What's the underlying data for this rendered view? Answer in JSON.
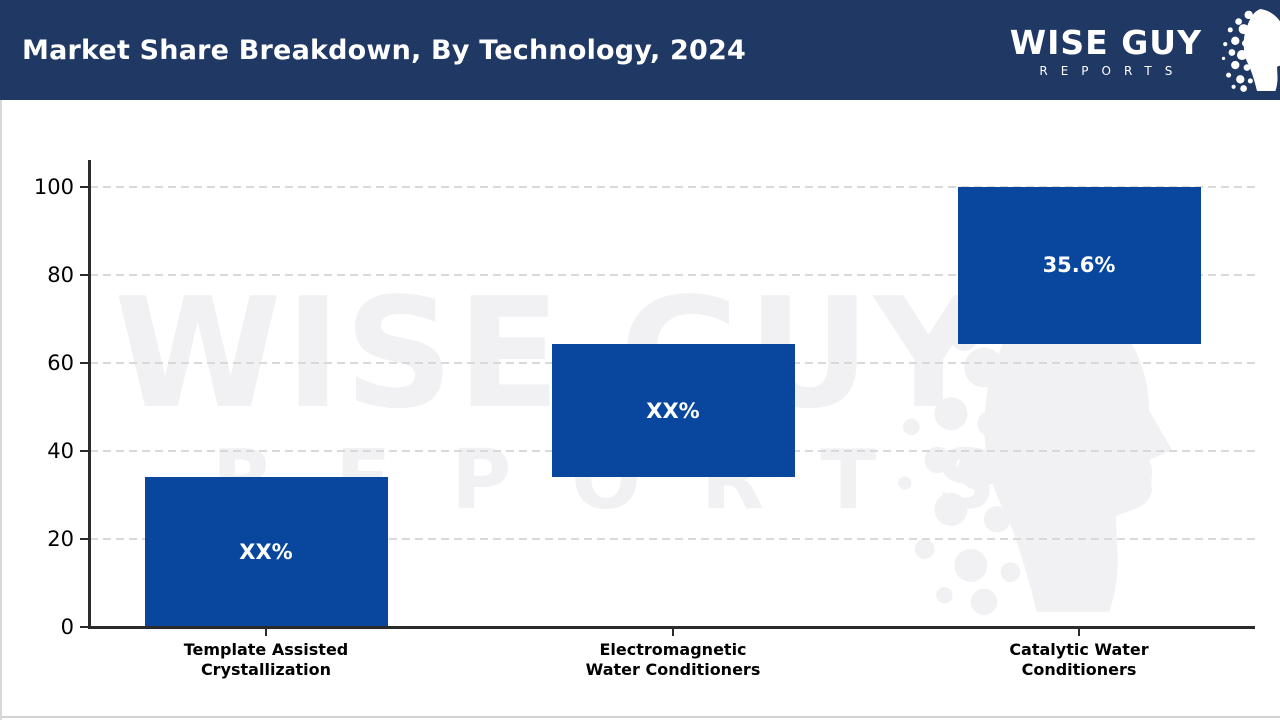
{
  "header": {
    "title": "Market Share Breakdown, By Technology, 2024",
    "logo": {
      "line1": "WISE GUY",
      "line2": "REPORTS"
    }
  },
  "watermark": {
    "line1": "WISE GUY",
    "line2": "REPORTS"
  },
  "colors": {
    "header_bg": "#1f3864",
    "bar": "#08479d",
    "bar_label": "#ffffff",
    "grid": "#d9d9d9",
    "axis": "#2b2b2b",
    "watermark": "#f1f1f4",
    "bottom_rule": "#d2d2d2"
  },
  "chart_data": {
    "type": "bar",
    "subtype": "waterfall",
    "title": "Market Share Breakdown, By Technology, 2024",
    "categories": [
      "Template Assisted\nCrystallization",
      "Electromagnetic\nWater Conditioners",
      "Catalytic Water\nConditioners"
    ],
    "segments": [
      {
        "category": "Template Assisted Crystallization",
        "start": 0,
        "end": 34,
        "label": "XX%"
      },
      {
        "category": "Electromagnetic Water Conditioners",
        "start": 34,
        "end": 64.4,
        "label": "XX%"
      },
      {
        "category": "Catalytic Water Conditioners",
        "start": 64.4,
        "end": 100,
        "label": "35.6%"
      }
    ],
    "xlabel": "",
    "ylabel": "",
    "yticks": [
      0,
      20,
      40,
      60,
      80,
      100
    ],
    "ylim": [
      0,
      106
    ],
    "grid": {
      "axis": "y",
      "style": "dashed"
    },
    "legend": "none",
    "units": "percent"
  }
}
